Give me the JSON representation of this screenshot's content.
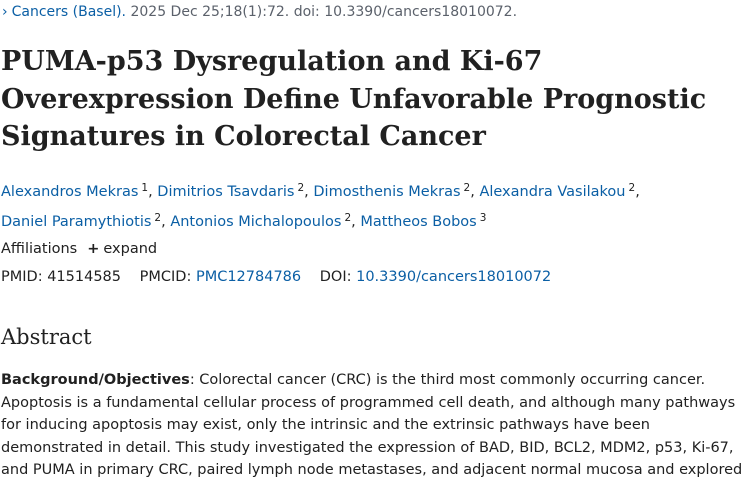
{
  "citation": {
    "journal": "Cancers (Basel).",
    "details": "2025 Dec 25;18(1):72. doi: 10.3390/cancers18010072."
  },
  "title": "PUMA-p53 Dysregulation and Ki-67 Overexpression Define Unfavorable Prognostic Signatures in Colorectal Cancer",
  "authors": [
    {
      "name": "Alexandros Mekras",
      "aff": "1"
    },
    {
      "name": "Dimitrios Tsavdaris",
      "aff": "2"
    },
    {
      "name": "Dimosthenis Mekras",
      "aff": "2"
    },
    {
      "name": "Alexandra Vasilakou",
      "aff": "2"
    },
    {
      "name": "Daniel Paramythiotis",
      "aff": "2"
    },
    {
      "name": "Antonios Michalopoulos",
      "aff": "2"
    },
    {
      "name": "Mattheos Bobos",
      "aff": "3"
    }
  ],
  "affiliations": {
    "label": "Affiliations",
    "toggle": "expand"
  },
  "ids": {
    "pmid": {
      "label": "PMID:",
      "value": "41514585"
    },
    "pmcid": {
      "label": "PMCID:",
      "value": "PMC12784786"
    },
    "doi": {
      "label": "DOI:",
      "value": "10.3390/cancers18010072"
    }
  },
  "abstract": {
    "heading": "Abstract",
    "section_label": "Background/Objectives",
    "text": ": Colorectal cancer (CRC) is the third most commonly occurring cancer. Apoptosis is a fundamental cellular process of programmed cell death, and although many pathways for inducing apoptosis may exist, only the intrinsic and the extrinsic pathways have been demonstrated in detail. This study investigated the expression of BAD, BID, BCL2, MDM2, p53, Ki-67, and PUMA in primary CRC, paired lymph node metastases, and adjacent normal mucosa and explored"
  }
}
